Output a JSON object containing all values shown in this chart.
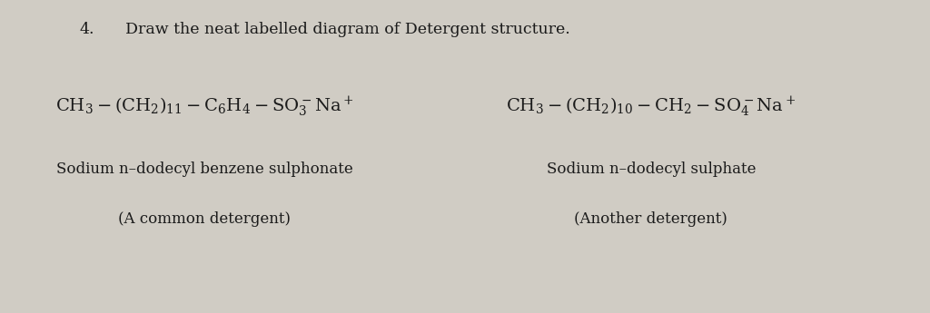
{
  "background_color": "#d0ccc4",
  "title_number": "4.",
  "title_text": "Draw the neat labelled diagram of Detergent structure.",
  "formula1": "$\\mathdefault{CH_3}$—$\\mathdefault{(CH_2)_{11}}$—$\\mathdefault{C_6H_4}$—$\\mathdefault{SO_3^-}$$\\mathdefault{Na^+}$",
  "formula2": "$\\mathdefault{CH_3}$—$\\mathdefault{(CH_2)_{10}}$—$\\mathdefault{CH_2}$—$\\mathdefault{SO_4^-}$$\\mathdefault{Na^+}$",
  "label1_line1": "Sodium n–dodecyl benzene sulphonate",
  "label1_line2": "(A common detergent)",
  "label2_line1": "Sodium n–dodecyl sulphate",
  "label2_line2": "(Another detergent)",
  "text_color": "#1a1a1a",
  "title_fontsize": 12.5,
  "formula_fontsize": 14,
  "label_fontsize": 12
}
